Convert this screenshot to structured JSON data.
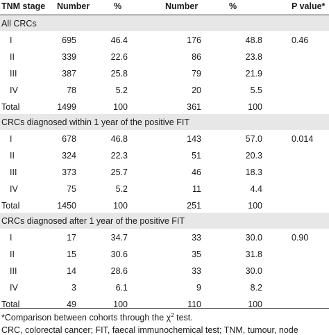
{
  "headers": [
    "TNM stage",
    "Number",
    "%",
    "Number",
    "%",
    "P value*"
  ],
  "sections": [
    {
      "title": "All CRCs",
      "p_value": "0.46",
      "rows": [
        {
          "stage": "I",
          "n1": "695",
          "p1": "46.4",
          "n2": "176",
          "p2": "48.8"
        },
        {
          "stage": "II",
          "n1": "339",
          "p1": "22.6",
          "n2": "86",
          "p2": "23.8"
        },
        {
          "stage": "III",
          "n1": "387",
          "p1": "25.8",
          "n2": "79",
          "p2": "21.9"
        },
        {
          "stage": "IV",
          "n1": "78",
          "p1": "5.2",
          "n2": "20",
          "p2": "5.5"
        },
        {
          "stage": "Total",
          "n1": "1499",
          "p1": "100",
          "n2": "361",
          "p2": "100"
        }
      ]
    },
    {
      "title": "CRCs diagnosed within 1 year of the positive FIT",
      "p_value": "0.014",
      "rows": [
        {
          "stage": "I",
          "n1": "678",
          "p1": "46.8",
          "n2": "143",
          "p2": "57.0"
        },
        {
          "stage": "II",
          "n1": "324",
          "p1": "22.3",
          "n2": "51",
          "p2": "20.3"
        },
        {
          "stage": "III",
          "n1": "373",
          "p1": "25.7",
          "n2": "46",
          "p2": "18.3"
        },
        {
          "stage": "IV",
          "n1": "75",
          "p1": "5.2",
          "n2": "11",
          "p2": "4.4"
        },
        {
          "stage": "Total",
          "n1": "1450",
          "p1": "100",
          "n2": "251",
          "p2": "100"
        }
      ]
    },
    {
      "title": "CRCs diagnosed after 1 year of the positive FIT",
      "p_value": "0.90",
      "rows": [
        {
          "stage": "I",
          "n1": "17",
          "p1": "34.7",
          "n2": "33",
          "p2": "30.0"
        },
        {
          "stage": "II",
          "n1": "15",
          "p1": "30.6",
          "n2": "35",
          "p2": "31.8"
        },
        {
          "stage": "III",
          "n1": "14",
          "p1": "28.6",
          "n2": "33",
          "p2": "30.0"
        },
        {
          "stage": "IV",
          "n1": "3",
          "p1": "6.1",
          "n2": "9",
          "p2": "8.2"
        },
        {
          "stage": "Total",
          "n1": "49",
          "p1": "100",
          "n2": "110",
          "p2": "100"
        }
      ]
    }
  ],
  "footnotes": {
    "line1_prefix": "*Comparison between cohorts through the χ",
    "line1_sup": "2",
    "line1_suffix": " test.",
    "line2": "CRC, colorectal cancer; FIT, faecal immunochemical test; TNM, tumour, node"
  }
}
